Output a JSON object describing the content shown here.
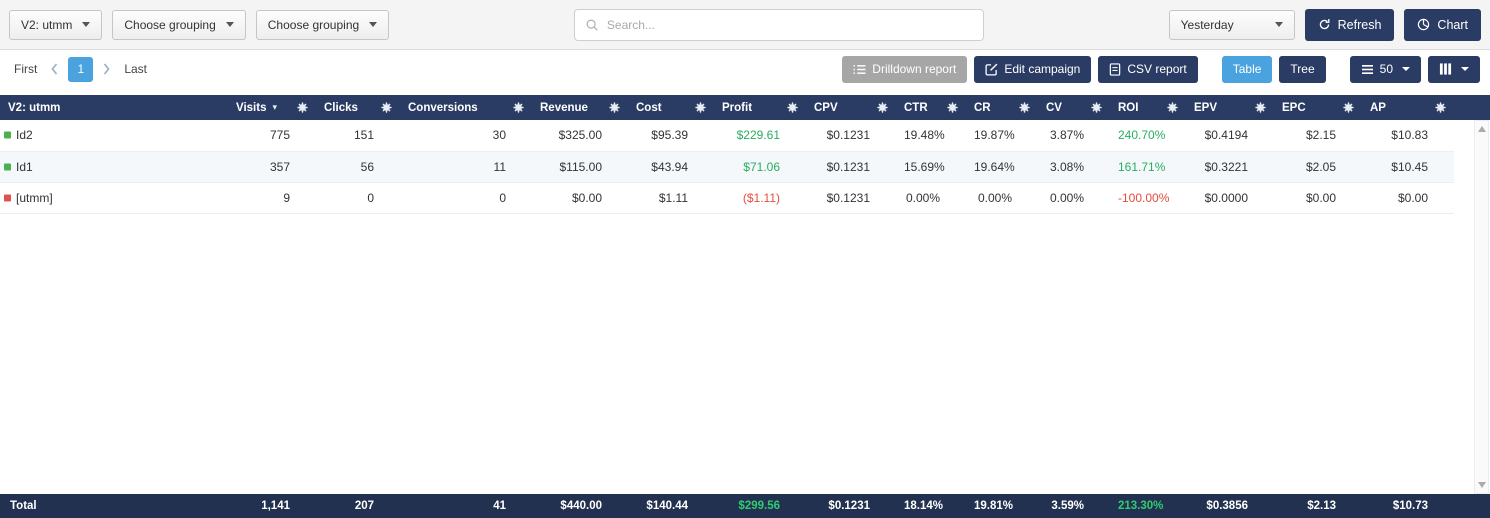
{
  "colors": {
    "navy": "#2b3c64",
    "navy_dark": "#233150",
    "blue": "#4aa3df",
    "green": "#27ae60",
    "green_bright": "#2ecc71",
    "red": "#e74c3c",
    "status_green": "#4caf50",
    "status_red": "#e0534a"
  },
  "toolbar": {
    "campaign_dropdown": "V2: utmm",
    "grouping_dropdown_1": "Choose grouping",
    "grouping_dropdown_2": "Choose grouping",
    "search_placeholder": "Search...",
    "date_dropdown": "Yesterday",
    "refresh_button": "Refresh",
    "chart_button": "Chart"
  },
  "pagination": {
    "first_label": "First",
    "current_page": "1",
    "last_label": "Last"
  },
  "actions": {
    "drilldown_button": "Drilldown report",
    "edit_campaign_button": "Edit campaign",
    "csv_button": "CSV report",
    "table_toggle": "Table",
    "tree_toggle": "Tree",
    "rows_per_page": "50"
  },
  "table": {
    "columns": [
      {
        "label": "V2: utmm"
      },
      {
        "label": "Visits",
        "sortable": true
      },
      {
        "label": "Clicks"
      },
      {
        "label": "Conversions"
      },
      {
        "label": "Revenue"
      },
      {
        "label": "Cost"
      },
      {
        "label": "Profit"
      },
      {
        "label": "CPV"
      },
      {
        "label": "CTR"
      },
      {
        "label": "CR"
      },
      {
        "label": "CV"
      },
      {
        "label": "ROI"
      },
      {
        "label": "EPV"
      },
      {
        "label": "EPC"
      },
      {
        "label": "AP"
      }
    ],
    "rows": [
      {
        "status": "green",
        "name": "Id2",
        "visits": "775",
        "clicks": "151",
        "conversions": "30",
        "revenue": "$325.00",
        "cost": "$95.39",
        "profit": "$229.61",
        "cpv": "$0.1231",
        "ctr": "19.48%",
        "cr": "19.87%",
        "cv": "3.87%",
        "roi": "240.70%",
        "epv": "$0.4194",
        "epc": "$2.15",
        "ap": "$10.83",
        "trend": "positive"
      },
      {
        "status": "green",
        "name": "Id1",
        "visits": "357",
        "clicks": "56",
        "conversions": "11",
        "revenue": "$115.00",
        "cost": "$43.94",
        "profit": "$71.06",
        "cpv": "$0.1231",
        "ctr": "15.69%",
        "cr": "19.64%",
        "cv": "3.08%",
        "roi": "161.71%",
        "epv": "$0.3221",
        "epc": "$2.05",
        "ap": "$10.45",
        "trend": "positive"
      },
      {
        "status": "red",
        "name": "[utmm]",
        "visits": "9",
        "clicks": "0",
        "conversions": "0",
        "revenue": "$0.00",
        "cost": "$1.11",
        "profit": "($1.11)",
        "cpv": "$0.1231",
        "ctr": "0.00%",
        "cr": "0.00%",
        "cv": "0.00%",
        "roi": "-100.00%",
        "epv": "$0.0000",
        "epc": "$0.00",
        "ap": "$0.00",
        "trend": "negative"
      }
    ],
    "total": {
      "label": "Total",
      "visits": "1,141",
      "clicks": "207",
      "conversions": "41",
      "revenue": "$440.00",
      "cost": "$140.44",
      "profit": "$299.56",
      "cpv": "$0.1231",
      "ctr": "18.14%",
      "cr": "19.81%",
      "cv": "3.59%",
      "roi": "213.30%",
      "epv": "$0.3856",
      "epc": "$2.13",
      "ap": "$10.73",
      "trend": "positive"
    }
  }
}
